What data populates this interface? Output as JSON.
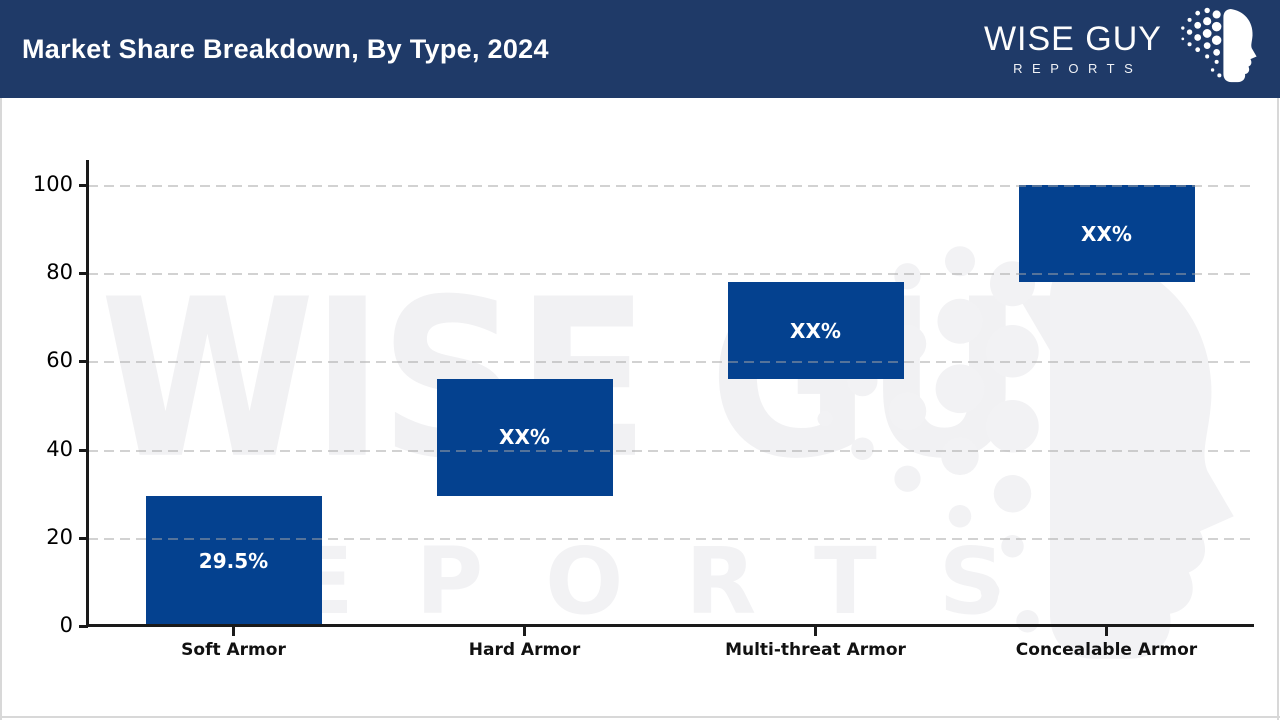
{
  "header": {
    "title": "Market Share Breakdown, By Type, 2024",
    "logo": {
      "name": "WISE GUY",
      "subname": "REPORTS"
    }
  },
  "watermark": {
    "line1": "WISE GUY",
    "line2": "REPORTS"
  },
  "colors": {
    "header_bg": "#1f3a68",
    "bar_fill": "#04418f",
    "bar_label_text": "#ffffff",
    "axis": "#1a1a1a",
    "tick_label_text": "#000000",
    "gridline": "#d2d2d2",
    "watermark": "#f1f1f3",
    "page_border": "#d8d8d8"
  },
  "chart_data": {
    "type": "bar",
    "subtype": "waterfall",
    "title": "Market Share Breakdown, By Type, 2024",
    "categories": [
      "Soft Armor",
      "Hard Armor",
      "Multi-threat Armor",
      "Concealable Armor"
    ],
    "series": [
      {
        "name": "Market share (%)",
        "segments": [
          {
            "category": "Soft Armor",
            "start": 0,
            "end": 29.5,
            "label": "29.5%"
          },
          {
            "category": "Hard Armor",
            "start": 29.5,
            "end": 56,
            "label": "XX%"
          },
          {
            "category": "Multi-threat Armor",
            "start": 56,
            "end": 78,
            "label": "XX%"
          },
          {
            "category": "Concealable Armor",
            "start": 78,
            "end": 100,
            "label": "XX%"
          }
        ]
      }
    ],
    "ylim": [
      0,
      100
    ],
    "yticks": [
      0,
      20,
      40,
      60,
      80,
      100
    ],
    "xlabel": "",
    "ylabel": "",
    "grid": "horizontal-dashed",
    "legend": "none"
  }
}
